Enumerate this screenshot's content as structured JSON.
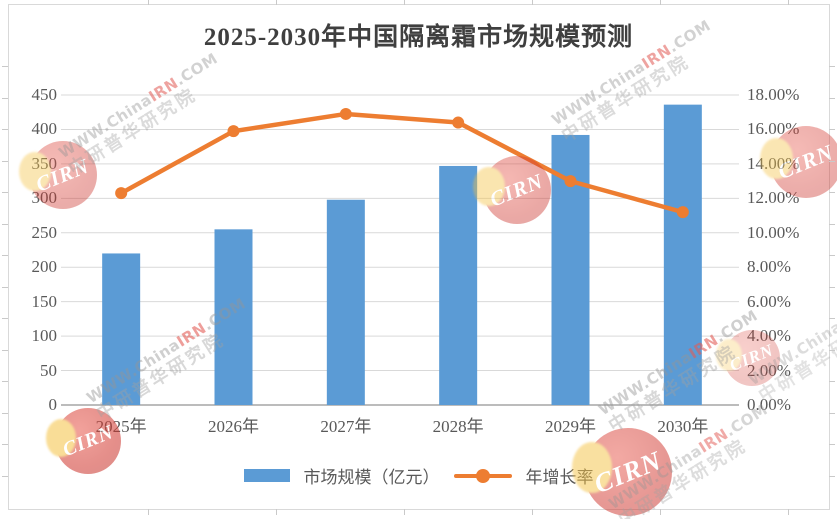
{
  "title": "2025-2030年中国隔离霜市场规模预测",
  "chart_data": {
    "type": "bar+line combo",
    "title": "2025-2030年中国隔离霜市场规模预测",
    "categories": [
      "2025年",
      "2026年",
      "2027年",
      "2028年",
      "2029年",
      "2030年"
    ],
    "series": [
      {
        "name": "市场规模（亿元）",
        "type": "bar",
        "axis": "left",
        "unit": "亿元",
        "values": [
          220,
          255,
          298,
          347,
          392,
          436
        ],
        "color": "#5B9BD5"
      },
      {
        "name": "年增长率",
        "type": "line",
        "axis": "right",
        "unit": "%",
        "values": [
          12.3,
          15.9,
          16.9,
          16.4,
          13.0,
          11.2
        ],
        "color": "#ED7D31"
      }
    ],
    "left_axis": {
      "min": 0,
      "max": 450,
      "step": 50,
      "tick_labels": [
        "0",
        "50",
        "100",
        "150",
        "200",
        "250",
        "300",
        "350",
        "400",
        "450"
      ]
    },
    "right_axis": {
      "min": 0,
      "max": 18,
      "step": 2,
      "tick_labels": [
        "0.00%",
        "2.00%",
        "4.00%",
        "6.00%",
        "8.00%",
        "10.00%",
        "12.00%",
        "14.00%",
        "16.00%",
        "18.00%"
      ]
    },
    "grid": true,
    "legend_position": "bottom"
  },
  "legend": {
    "bar_label": "市场规模（亿元）",
    "line_label": "年增长率"
  },
  "watermark": {
    "site_prefix": "WWW.China",
    "site_mid": "IRN",
    "site_suffix": ".COM",
    "brand_text": "中研普华研究院",
    "logo_text": "CIRN"
  },
  "colors": {
    "bar": "#5B9BD5",
    "line": "#ED7D31",
    "title_text": "#3F3F3F",
    "axis_text": "#595959",
    "gridline": "#D9D9D9",
    "axis_line": "#A6A6A6",
    "watermark_red": "#D0342C",
    "watermark_yellow": "#F5C243"
  }
}
